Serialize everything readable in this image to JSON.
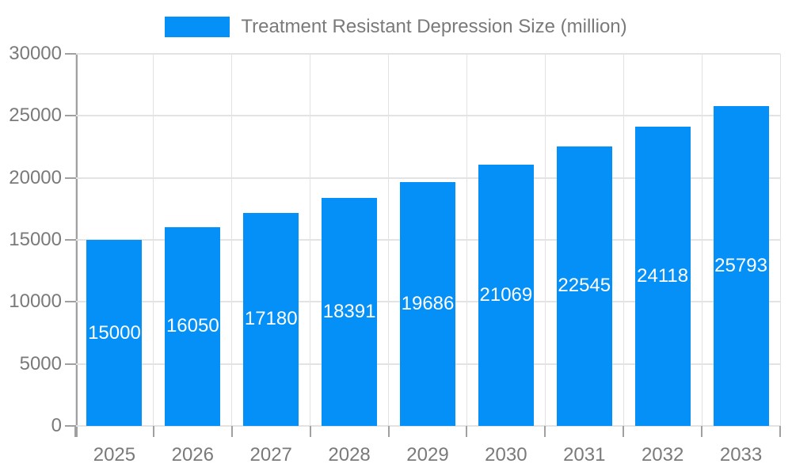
{
  "chart_data": {
    "type": "bar",
    "title": "",
    "legend_label": "Treatment Resistant Depression Size (million)",
    "legend_position": "top",
    "categories": [
      "2025",
      "2026",
      "2027",
      "2028",
      "2029",
      "2030",
      "2031",
      "2032",
      "2033"
    ],
    "values": [
      15000,
      16050,
      17180,
      18391,
      19686,
      21069,
      22545,
      24118,
      25793
    ],
    "data_labels": [
      "15000",
      "16050",
      "17180",
      "18391",
      "19686",
      "21069",
      "22545",
      "24118",
      "25793"
    ],
    "ylim": [
      0,
      30000
    ],
    "yticks": [
      "0",
      "5000",
      "10000",
      "15000",
      "20000",
      "25000",
      "30000"
    ],
    "grid": "on",
    "colors": {
      "bar": "#0590f8",
      "bar_label_text": "#ffffff",
      "axis_text": "#7a7a7a",
      "grid_h": "#e3e3e3",
      "grid_v": "#e2e2e2",
      "axis_line": "#a0a0a0"
    }
  }
}
